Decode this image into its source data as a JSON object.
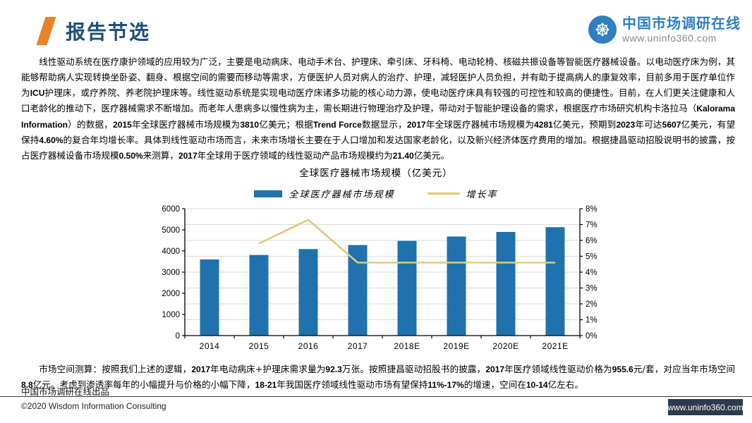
{
  "header": {
    "title": "报告节选",
    "logo_name": "中国市场调研在线",
    "logo_site": "www.uninfo360.com"
  },
  "colors": {
    "accent_orange": "#E8832A",
    "title_navy": "#1F4E79",
    "logo_blue": "#2F7FC1",
    "bar_blue": "#1F72AD",
    "line_khaki": "#E2C97E",
    "footer_box": "#2C3A4D",
    "grid_gray": "#DCDCDC"
  },
  "intro": {
    "segments": [
      {
        "text": "线性驱动系统在医疗康护领域的应用较为广泛，主要是电动病床、电动手术台、护理床、牵引床、牙科椅、电动轮椅、核磁共振设备等智能医疗器械设备。以电动医疗床为例，其能够帮助病人实现转换坐卧姿、翻身、根据空间的需要而移动等需求，方便医护人员对病人的治疗、护理，减轻医护人员负担，并有助于提高病人的康复效率，目前多用于医疗单位作为",
        "bold": false
      },
      {
        "text": "ICU",
        "bold": true
      },
      {
        "text": "护理床，或疗养院、养老院护理床等。线性驱动系统是实现电动医疗床诸多功能的核心动力源，使电动医疗床具有较强的可控性和较高的便捷性。目前，在人们更关注健康和人口老龄化的推动下，医疗器械需求不断增加。而老年人患病多以慢性病为主，需长期进行物理治疗及护理，带动对于智能护理设备的需求，根据医疗市场研究机构卡洛拉马（",
        "bold": false
      },
      {
        "text": "Kalorama Information",
        "bold": true
      },
      {
        "text": "）的数据，",
        "bold": false
      },
      {
        "text": "2015",
        "bold": true
      },
      {
        "text": "年全球医疗器械市场规模为",
        "bold": false
      },
      {
        "text": "3810",
        "bold": true
      },
      {
        "text": "亿美元；根据",
        "bold": false
      },
      {
        "text": "Trend Force",
        "bold": true
      },
      {
        "text": "数据显示，",
        "bold": false
      },
      {
        "text": "2017",
        "bold": true
      },
      {
        "text": "年全球医疗器械市场规模为",
        "bold": false
      },
      {
        "text": "4281",
        "bold": true
      },
      {
        "text": "亿美元，预期到",
        "bold": false
      },
      {
        "text": "2023",
        "bold": true
      },
      {
        "text": "年可达",
        "bold": false
      },
      {
        "text": "5607",
        "bold": true
      },
      {
        "text": "亿美元，有望保持",
        "bold": false
      },
      {
        "text": "4.60%",
        "bold": true
      },
      {
        "text": "的复合年均增长率。具体到线性驱动市场而言，未来市场增长主要在于人口增加和发达国家老龄化，以及新兴经济体医疗费用的增加。根据捷昌驱动招股说明书的披露，按占医疗器械设备市场规模",
        "bold": false
      },
      {
        "text": "0.50%",
        "bold": true
      },
      {
        "text": "来测算，",
        "bold": false
      },
      {
        "text": "2017",
        "bold": true
      },
      {
        "text": "年全球用于医疗领域的线性驱动产品市场规模约为",
        "bold": false
      },
      {
        "text": "21.40",
        "bold": true
      },
      {
        "text": "亿美元。",
        "bold": false
      }
    ]
  },
  "chart_data": {
    "type": "bar",
    "title": "全球医疗器械市场规模（亿美元）",
    "categories": [
      "2014",
      "2015",
      "2016",
      "2017",
      "2018E",
      "2019E",
      "2020E",
      "2021E"
    ],
    "series": [
      {
        "name": "全球医疗器械市场规模",
        "type": "bar",
        "axis": "left",
        "color": "#1F72AD",
        "values": [
          3600,
          3810,
          4090,
          4281,
          4478,
          4684,
          4899,
          5125
        ]
      },
      {
        "name": "增长率",
        "type": "line",
        "axis": "right",
        "color": "#E2C97E",
        "unit": "%",
        "values": [
          null,
          5.8,
          7.3,
          4.6,
          4.6,
          4.6,
          4.6,
          4.6
        ]
      }
    ],
    "left_axis": {
      "min": 0,
      "max": 6000,
      "step": 1000
    },
    "right_axis": {
      "min": 0,
      "max": 8,
      "step": 1,
      "suffix": "%"
    },
    "grid": true,
    "legend_position": "top-center"
  },
  "market": {
    "segments": [
      {
        "text": "市场空间测算：按照我们上述的逻辑，",
        "bold": false
      },
      {
        "text": "2017",
        "bold": true
      },
      {
        "text": "年电动病床+护理床需求量为",
        "bold": false
      },
      {
        "text": "92.3",
        "bold": true
      },
      {
        "text": "万张。按照捷昌驱动招股书的披露，",
        "bold": false
      },
      {
        "text": "2017",
        "bold": true
      },
      {
        "text": "年医疗领域线性驱动价格为",
        "bold": false
      },
      {
        "text": "955.6",
        "bold": true
      },
      {
        "text": "元/套，对应当年市场空间",
        "bold": false
      },
      {
        "text": "8.8",
        "bold": true
      },
      {
        "text": "亿元。考虑到渗透率每年的小幅提升与价格的小幅下降，",
        "bold": false
      },
      {
        "text": "18-21",
        "bold": true
      },
      {
        "text": "年我国医疗领域线性驱动市场有望保持",
        "bold": false
      },
      {
        "text": "11%-17%",
        "bold": true
      },
      {
        "text": "的增速，空间在",
        "bold": false
      },
      {
        "text": "10-14",
        "bold": true
      },
      {
        "text": "亿左右。",
        "bold": false
      }
    ]
  },
  "footer": {
    "produced_by": "中国市场调研在线出品",
    "copyright": "©2020 Wisdom Information Consulting",
    "site": "www.uninfo360.com"
  }
}
